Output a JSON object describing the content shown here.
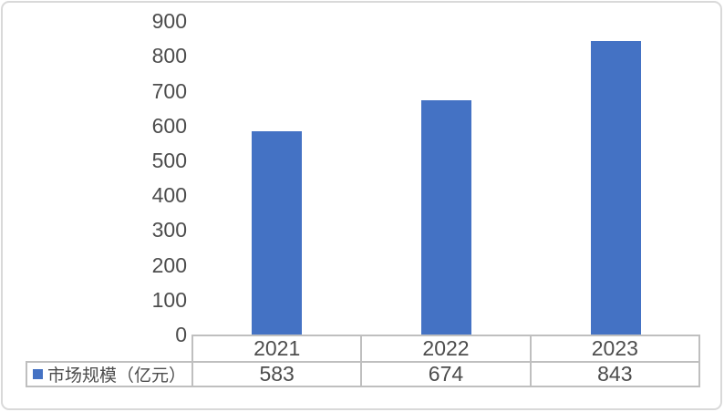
{
  "chart_data": {
    "type": "bar",
    "categories": [
      "2021",
      "2022",
      "2023"
    ],
    "series": [
      {
        "name": "市场规模（亿元）",
        "values": [
          583,
          674,
          843
        ]
      }
    ],
    "yticks": [
      900,
      800,
      700,
      600,
      500,
      400,
      300,
      200,
      100,
      0
    ],
    "ylim": [
      0,
      900
    ],
    "grid": false,
    "legend_position": "data-table-left",
    "has_data_table": true,
    "colors": {
      "bar": "#4472C4",
      "legend_key": "#4472C4",
      "table_border": "#BFBFBF",
      "frame_border": "#D9D9D9",
      "text": "#4D4D4D"
    }
  }
}
